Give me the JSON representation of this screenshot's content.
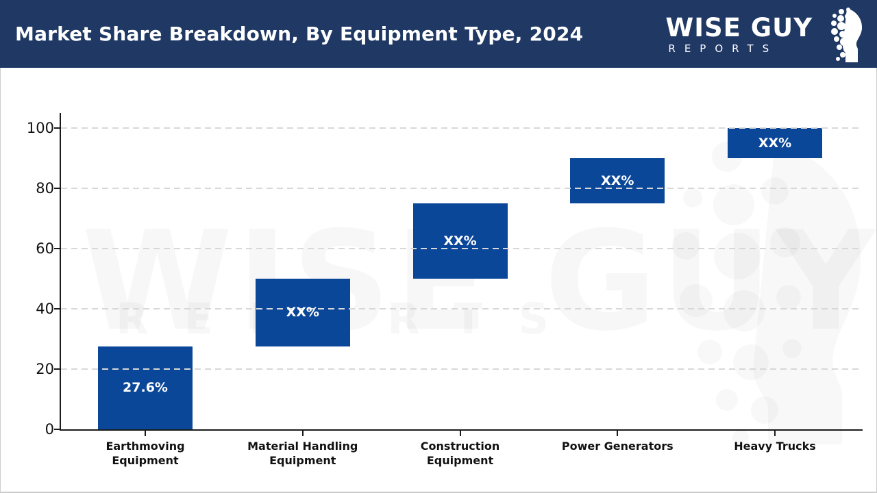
{
  "header": {
    "title": "Market Share Breakdown, By Equipment Type, 2024",
    "logo": {
      "line1": "WISE GUY",
      "line2": "REPORTS"
    }
  },
  "watermark": {
    "line1": "WISE GUY",
    "line2": "REPORTS"
  },
  "colors": {
    "header_bg": "#1f3864",
    "bar_blue": "#0b4798",
    "grid_gray": "#d8d8d8",
    "axis_black": "#1a1a1a"
  },
  "chart_data": {
    "type": "bar",
    "subtype": "waterfall",
    "title": "Market Share Breakdown, By Equipment Type, 2024",
    "categories": [
      "Earthmoving Equipment",
      "Material Handling Equipment",
      "Construction Equipment",
      "Power Generators",
      "Heavy Trucks"
    ],
    "category_lines": [
      [
        "Earthmoving",
        "Equipment"
      ],
      [
        "Material Handling",
        "Equipment"
      ],
      [
        "Construction",
        "Equipment"
      ],
      [
        "Power Generators"
      ],
      [
        "Heavy Trucks"
      ]
    ],
    "segments": [
      {
        "start": 0,
        "end": 27.6,
        "label": "27.6%"
      },
      {
        "start": 27.6,
        "end": 50,
        "label": "XX%"
      },
      {
        "start": 50,
        "end": 75,
        "label": "XX%"
      },
      {
        "start": 75,
        "end": 90,
        "label": "XX%"
      },
      {
        "start": 90,
        "end": 100,
        "label": "XX%"
      }
    ],
    "ylim": [
      0,
      100
    ],
    "yticks": [
      0,
      20,
      40,
      60,
      80,
      100
    ],
    "grid": "horizontal-dashed",
    "legend": "none",
    "bar_color": "#0b4798",
    "grid_color": "#d8d8d8",
    "axis_color": "#1a1a1a"
  }
}
